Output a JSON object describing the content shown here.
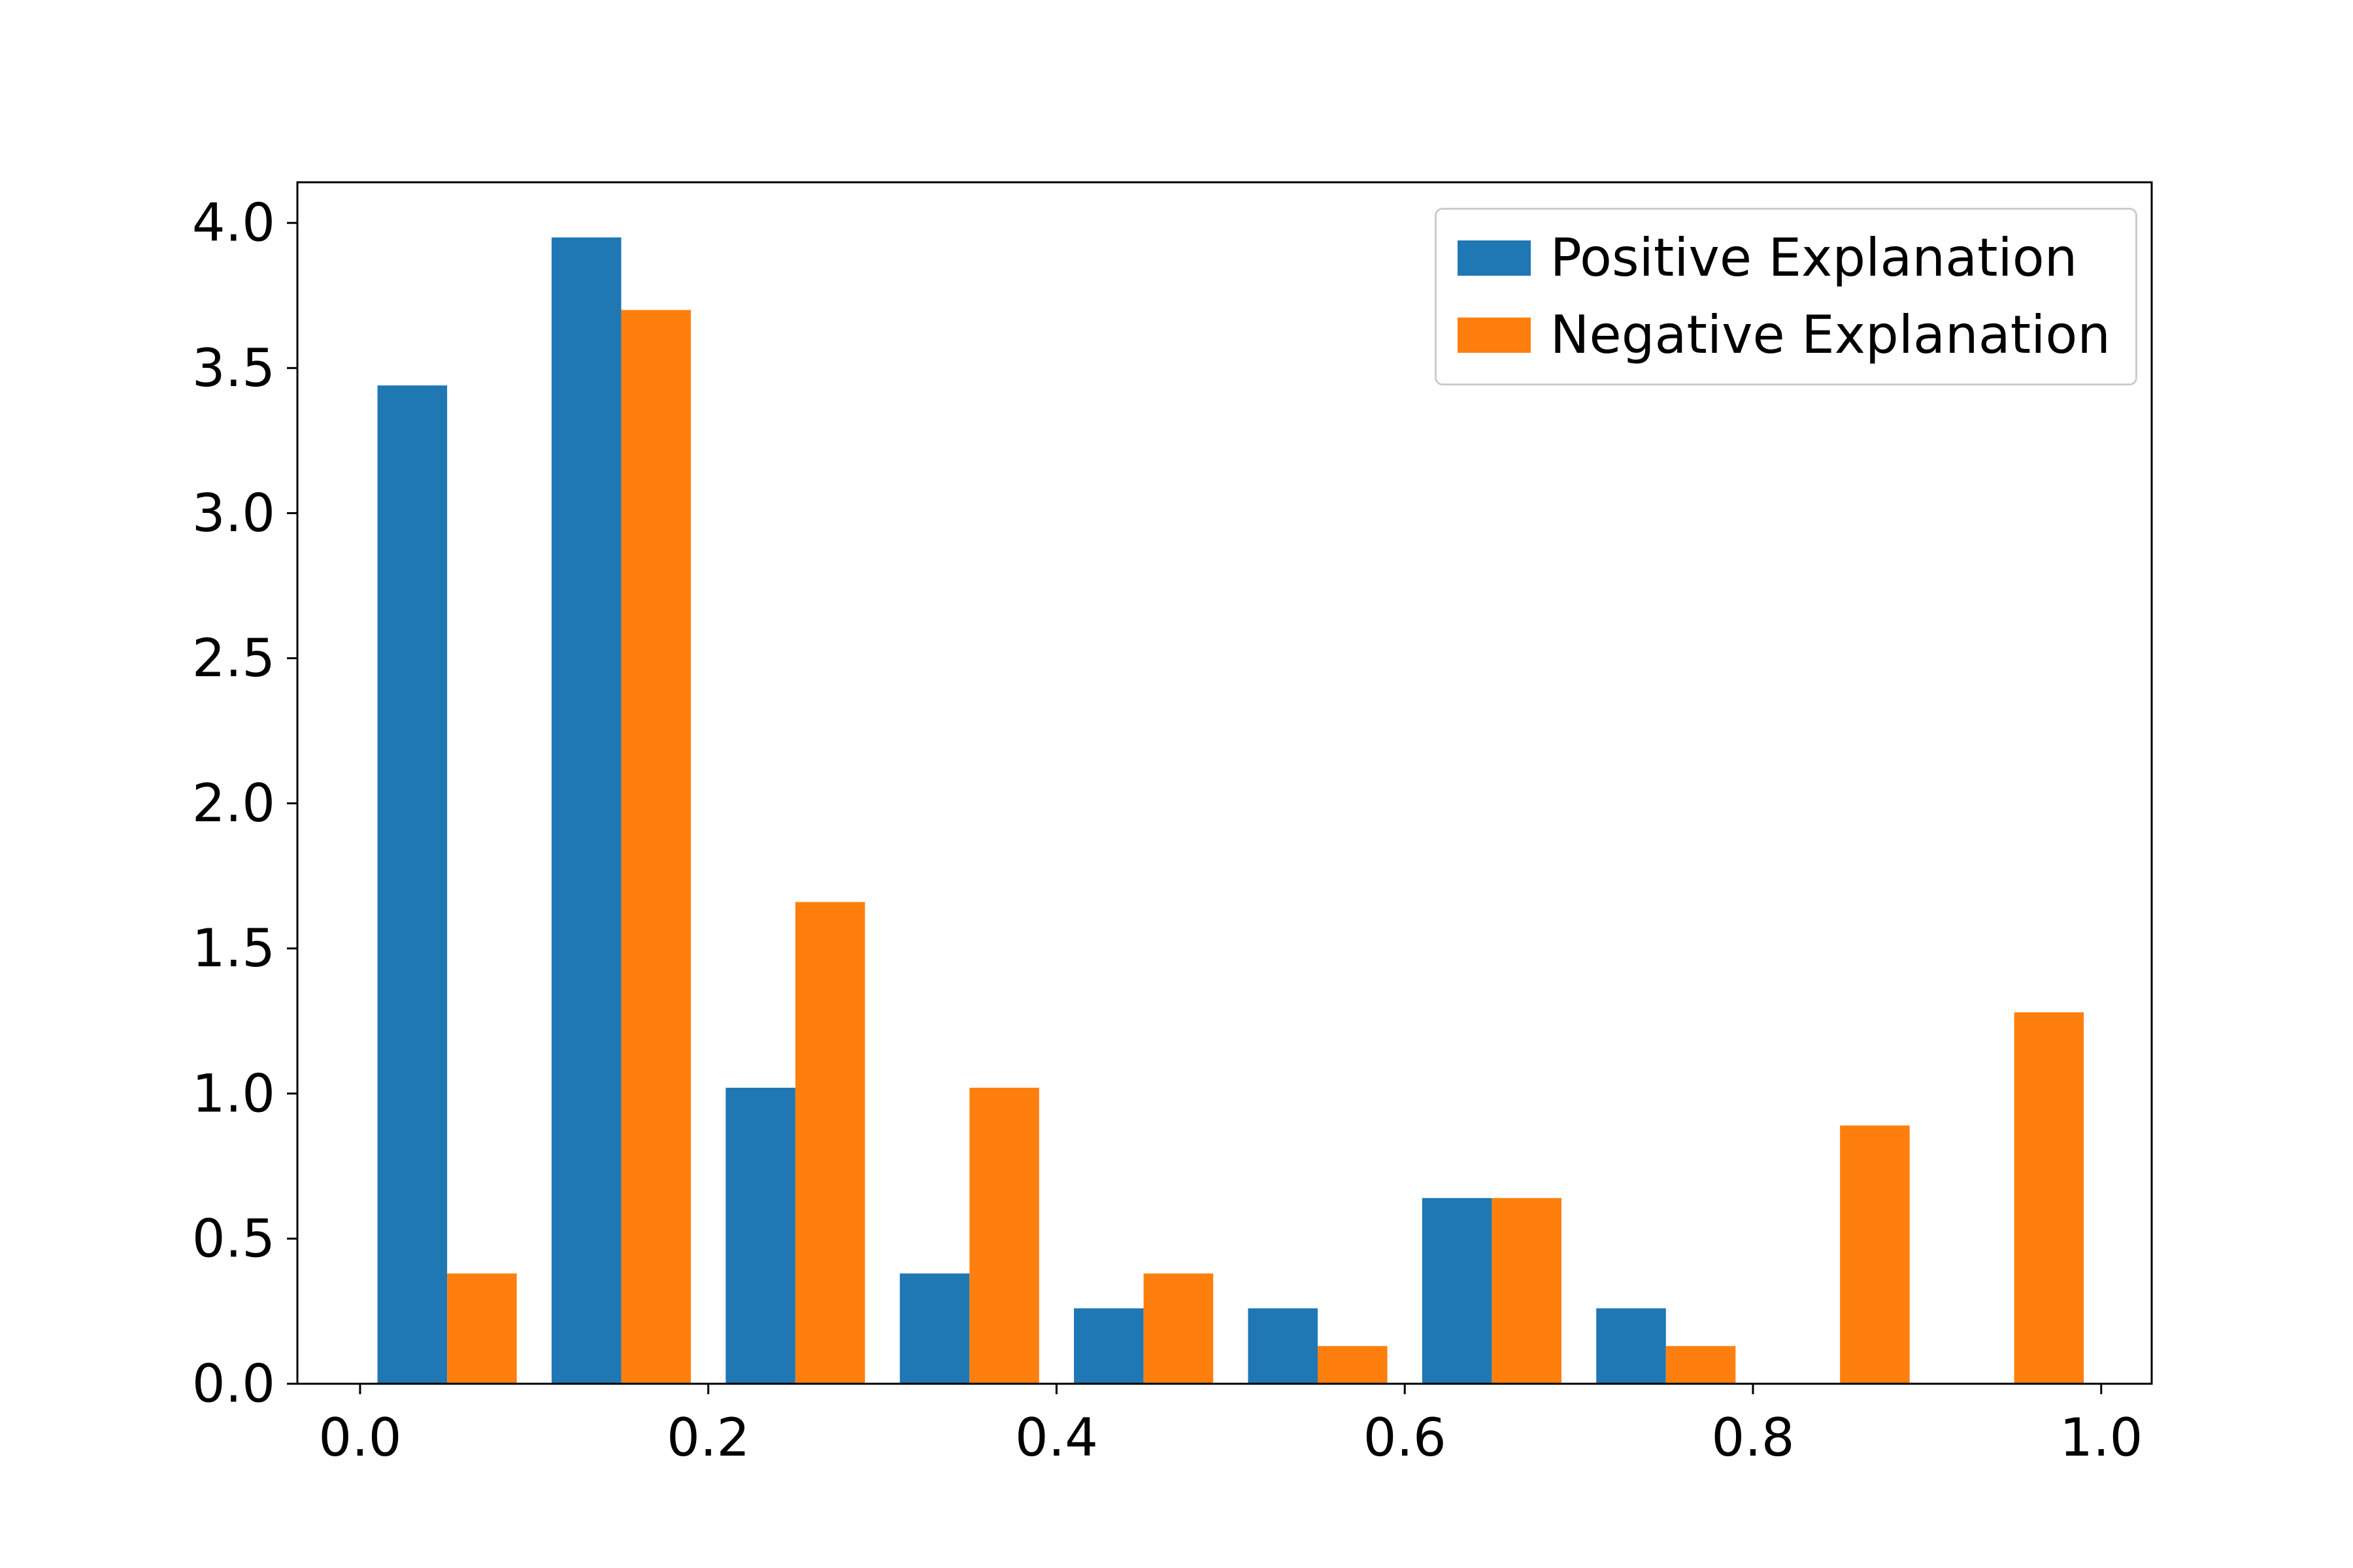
{
  "figure": {
    "background": "#ffffff"
  },
  "chart_data": {
    "type": "bar",
    "subtype": "grouped-histogram",
    "title": "",
    "xlabel": "",
    "ylabel": "",
    "bin_edges": [
      0.0,
      0.1,
      0.2,
      0.3,
      0.4,
      0.5,
      0.6,
      0.7,
      0.8,
      0.9,
      1.0
    ],
    "bar_width": 0.04,
    "series": [
      {
        "name": "Positive Explanation",
        "color": "#1f77b4",
        "values": [
          3.44,
          3.95,
          1.02,
          0.38,
          0.26,
          0.26,
          0.64,
          0.26,
          0.0,
          0.0
        ]
      },
      {
        "name": "Negative Explanation",
        "color": "#ff7f0e",
        "values": [
          0.38,
          3.7,
          1.66,
          1.02,
          0.38,
          0.13,
          0.64,
          0.13,
          0.89,
          1.28
        ]
      }
    ],
    "xticks": {
      "values": [
        0.0,
        0.2,
        0.4,
        0.6,
        0.8,
        1.0
      ],
      "labels": [
        "0.0",
        "0.2",
        "0.4",
        "0.6",
        "0.8",
        "1.0"
      ]
    },
    "yticks": {
      "values": [
        0.0,
        0.5,
        1.0,
        1.5,
        2.0,
        2.5,
        3.0,
        3.5,
        4.0
      ],
      "labels": [
        "0.0",
        "0.5",
        "1.0",
        "1.5",
        "2.0",
        "2.5",
        "3.0",
        "3.5",
        "4.0"
      ]
    },
    "xlim": [
      -0.036,
      1.029
    ],
    "ylim": [
      0,
      4.14
    ],
    "grid": false,
    "axis_color": "#000000",
    "legend": {
      "position": "upper right",
      "entries": [
        "Positive Explanation",
        "Negative Explanation"
      ]
    }
  }
}
